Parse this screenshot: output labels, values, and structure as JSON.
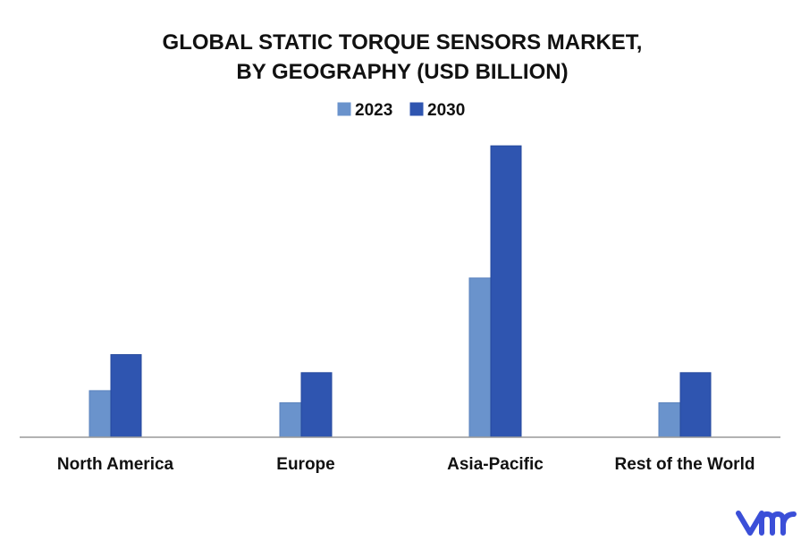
{
  "chart_data": {
    "type": "bar",
    "title_lines": [
      "GLOBAL STATIC TORQUE SENSORS MARKET,",
      "BY GEOGRAPHY (USD BILLION)"
    ],
    "categories": [
      "North America",
      "Europe",
      "Asia-Pacific",
      "Rest of the World"
    ],
    "series": [
      {
        "name": "2023",
        "color": "#6a93cc",
        "values": [
          1.55,
          1.15,
          5.3,
          1.15
        ]
      },
      {
        "name": "2030",
        "color": "#2f55b0",
        "values": [
          2.75,
          2.15,
          9.7,
          2.15
        ]
      }
    ],
    "ylim": [
      0,
      10
    ],
    "y_axis_visible": false,
    "grid": false,
    "legend_position": "top-center"
  },
  "logo": {
    "icon": "vmr-logo",
    "color": "#3b4fd8",
    "text": "vmr"
  }
}
